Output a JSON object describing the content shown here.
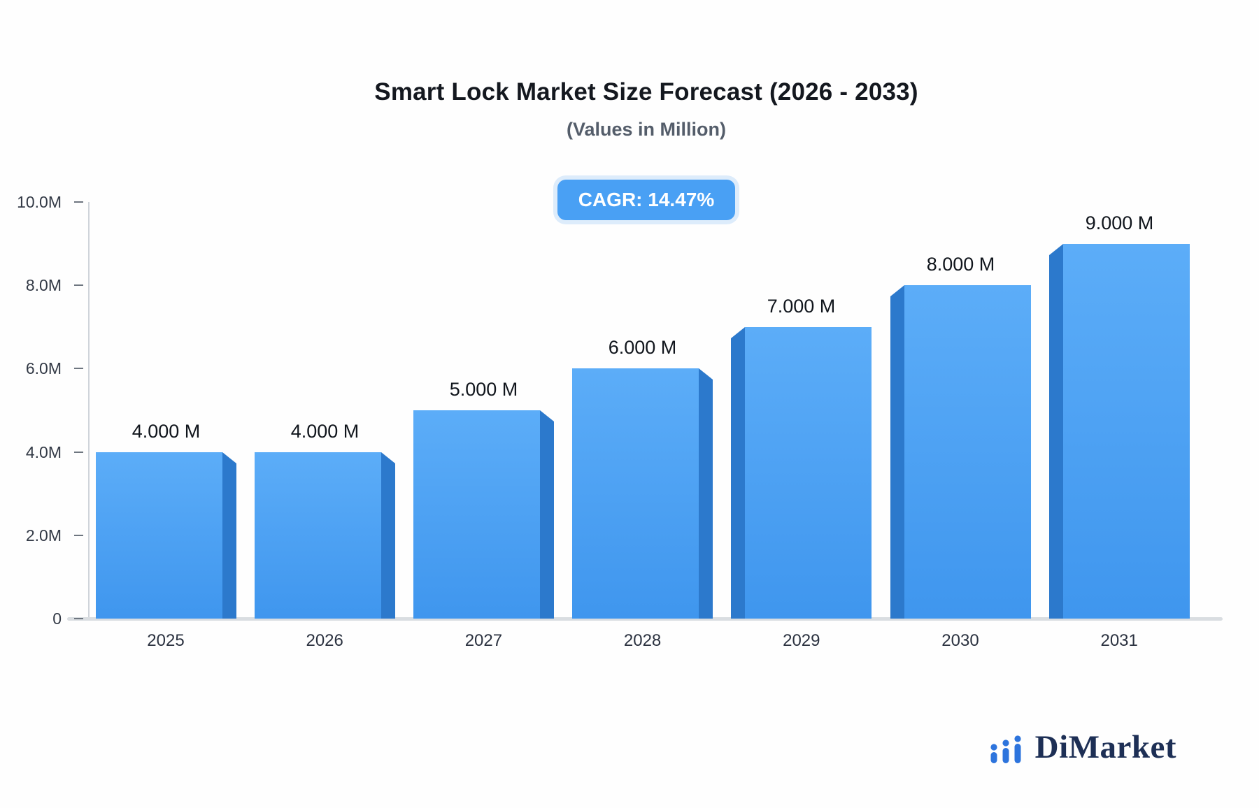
{
  "header": {
    "title": "Smart Lock Market Size Forecast (2026 - 2033)",
    "subtitle": "(Values in Million)",
    "badge": "CAGR: 14.47%"
  },
  "footer": {
    "brand": "DiMarket"
  },
  "colors": {
    "accent": "#49a0f4",
    "badge_halo": "#ddecfb",
    "logo_blue": "#2d74dd",
    "brand_navy": "#1d2f55"
  },
  "chart_data": {
    "type": "bar",
    "title": "Smart Lock Market Size Forecast (2026 - 2033)",
    "subtitle": "(Values in Million)",
    "annotation": "CAGR: 14.47%",
    "unit": "Million",
    "categories": [
      "2025",
      "2026",
      "2027",
      "2028",
      "2029",
      "2030",
      "2031"
    ],
    "values": [
      4.0,
      4.0,
      5.0,
      6.0,
      7.0,
      8.0,
      9.0
    ],
    "value_labels": [
      "4.000 M",
      "4.000 M",
      "5.000 M",
      "6.000 M",
      "7.000 M",
      "8.000 M",
      "9.000 M"
    ],
    "xlabel": "",
    "ylabel": "",
    "ylim": [
      0,
      10
    ],
    "yticks": [
      {
        "label": "10.0M",
        "value": 10
      },
      {
        "label": "8.0M",
        "value": 8
      },
      {
        "label": "6.0M",
        "value": 6
      },
      {
        "label": "4.0M",
        "value": 4
      },
      {
        "label": "2.0M",
        "value": 2
      },
      {
        "label": "0",
        "value": 0
      }
    ],
    "grid": false,
    "legend": "none",
    "bar_color": "#3f96ee",
    "bar_color_light": "#5cadf8",
    "bar_side_color": "#2c79cc"
  }
}
